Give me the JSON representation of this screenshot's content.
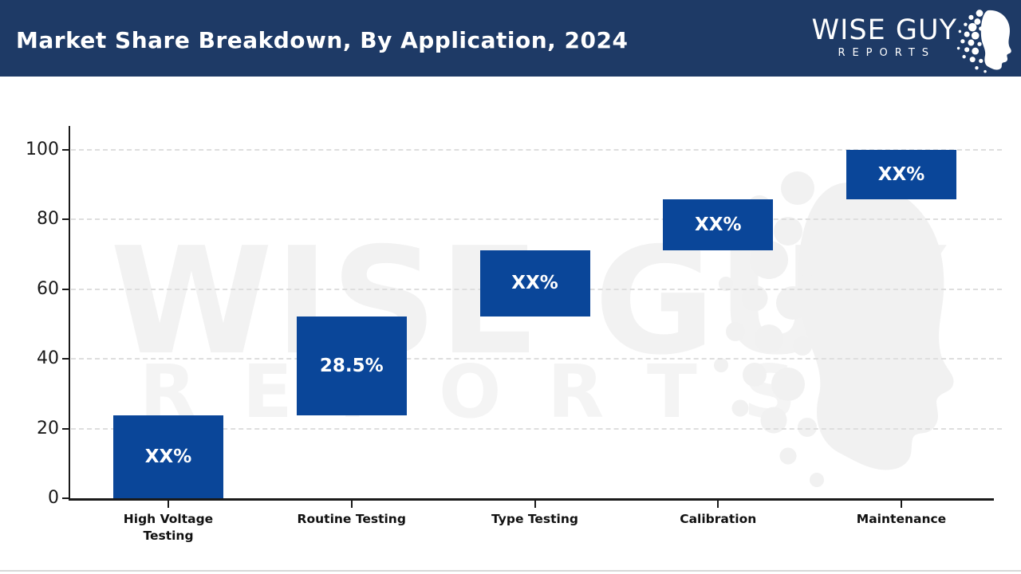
{
  "header": {
    "title": "Market Share Breakdown, By Application, 2024",
    "logo": {
      "name": "WISE GUY",
      "subtitle": "REPORTS"
    }
  },
  "watermark": {
    "name": "WISE GUY",
    "subtitle": "REPORTS"
  },
  "colors": {
    "header_bg": "#1e3a66",
    "bar_blue": "#0a4699",
    "gridline": "#dedede",
    "axis": "#1a1a1a",
    "watermark": "#f2f2f2",
    "label_text": "#ffffff"
  },
  "chart_data": {
    "type": "bar",
    "subtype": "waterfall-floating-bars",
    "title": "Market Share Breakdown, By Application, 2024",
    "xlabel": "",
    "ylabel": "",
    "ylim": [
      0,
      100
    ],
    "yticks": [
      0,
      20,
      40,
      60,
      80,
      100
    ],
    "grid": "horizontal-dashed",
    "legend": "none",
    "categories": [
      "High Voltage Testing",
      "Routine Testing",
      "Type Testing",
      "Calibration",
      "Maintenance"
    ],
    "bars": [
      {
        "category": "High Voltage Testing",
        "start": 0,
        "end": 23.7,
        "label": "XX%"
      },
      {
        "category": "Routine Testing",
        "start": 23.7,
        "end": 52.2,
        "label": "28.5%"
      },
      {
        "category": "Type Testing",
        "start": 52.2,
        "end": 71.2,
        "label": "XX%"
      },
      {
        "category": "Calibration",
        "start": 71.2,
        "end": 85.8,
        "label": "XX%"
      },
      {
        "category": "Maintenance",
        "start": 85.8,
        "end": 100,
        "label": "XX%"
      }
    ],
    "bar_color": "#0a4699",
    "value_label_color": "#ffffff"
  }
}
